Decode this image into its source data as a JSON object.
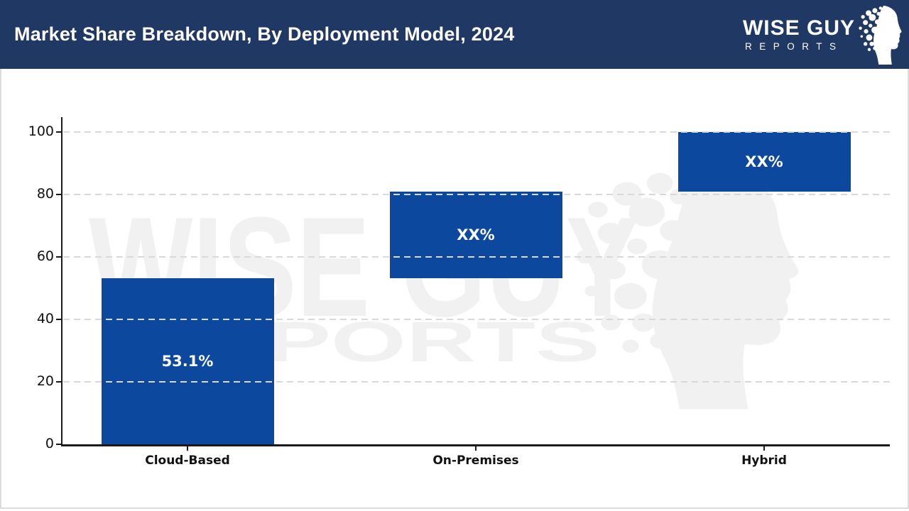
{
  "header": {
    "title": "Market Share Breakdown, By Deployment Model, 2024",
    "logo": {
      "wordmark": "WISE GUY",
      "subtext": "REPORTS",
      "icon": "dotted-head-profile"
    }
  },
  "watermark": {
    "wordmark": "WISE GUY",
    "subtext": "REPORTS"
  },
  "chart_data": {
    "type": "bar",
    "subtype": "floating-segment-waterfall",
    "title": "Market Share Breakdown, By Deployment Model, 2024",
    "categories": [
      "Cloud-Based",
      "On-Premises",
      "Hybrid"
    ],
    "segments": [
      {
        "category": "Cloud-Based",
        "base": 0,
        "top": 53.1,
        "label": "53.1%"
      },
      {
        "category": "On-Premises",
        "base": 53.1,
        "top": 81,
        "label": "XX%"
      },
      {
        "category": "Hybrid",
        "base": 81,
        "top": 100,
        "label": "XX%"
      }
    ],
    "xlabel": "",
    "ylabel": "",
    "ylim": [
      0,
      100
    ],
    "yticks": [
      0,
      20,
      40,
      60,
      80,
      100
    ],
    "grid": "horizontal-dashed",
    "legend": "none",
    "bar_color": "#0c489d",
    "bar_label_color": "#ffffff"
  },
  "colors": {
    "header_bg": "#1f3864",
    "title_text": "#ffffff",
    "bar": "#0c489d",
    "gridline": "#d9d9d9",
    "axis": "#1a1a1a",
    "tick_label": "#111111",
    "watermark": "#f1f1f1",
    "frame_border": "#dcdcdc"
  }
}
